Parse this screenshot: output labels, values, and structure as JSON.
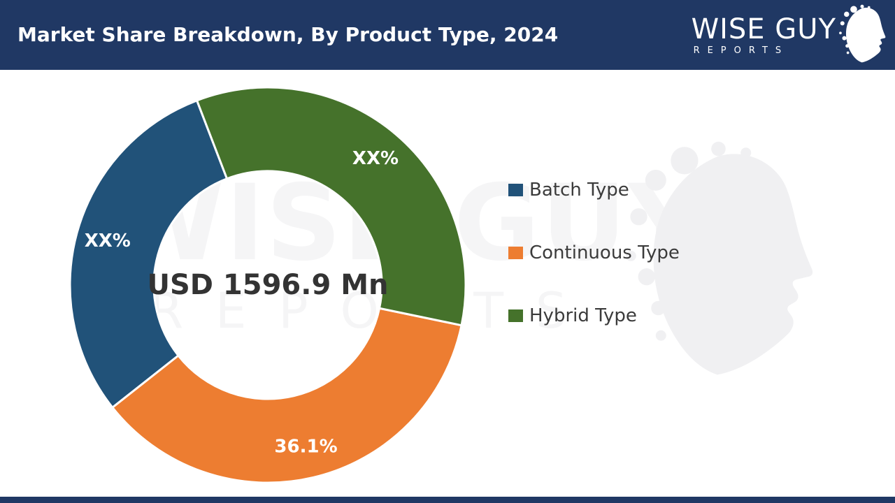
{
  "header": {
    "title": "Market Share Breakdown, By Product Type, 2024",
    "bg_color": "#203864",
    "logo": {
      "line1": "WISE GUY",
      "line2": "REPORTS"
    }
  },
  "watermark": {
    "line1": "WISE GUY",
    "line2": "REPORTS"
  },
  "chart_data": {
    "type": "donut",
    "title": "Market Share Breakdown, By Product Type, 2024",
    "center_label": "USD 1596.9 Mn",
    "legend_position": "right",
    "start_angle_deg": 111,
    "direction": "counterclockwise",
    "inner_radius_ratio": 0.576,
    "label_radius_ratio": 0.84,
    "slices": [
      {
        "label": "Batch Type",
        "value_pct": 29.8,
        "display": "XX%",
        "color": "#215279"
      },
      {
        "label": "Continuous Type",
        "value_pct": 36.1,
        "display": "36.1%",
        "color": "#ED7D31"
      },
      {
        "label": "Hybrid Type",
        "value_pct": 34.1,
        "display": "XX%",
        "color": "#45722B"
      }
    ]
  },
  "colors": {
    "header_navy": "#203864",
    "batch_blue": "#215279",
    "continuous_orange": "#ED7D31",
    "hybrid_green": "#45722B",
    "legend_text": "#3b3b3b",
    "center_text": "#333333",
    "watermark_gray": "#f0f0f2"
  }
}
